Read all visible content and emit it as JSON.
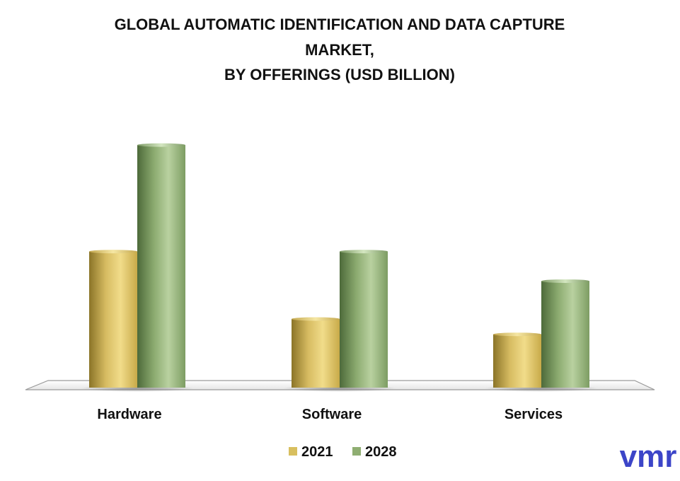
{
  "chart_data": {
    "type": "bar",
    "title_lines": [
      "GLOBAL AUTOMATIC IDENTIFICATION AND DATA CAPTURE",
      "MARKET,",
      "BY OFFERINGS (USD BILLION)"
    ],
    "categories": [
      "Hardware",
      "Software",
      "Services"
    ],
    "series": [
      {
        "name": "2021",
        "values": [
          11.5,
          5.8,
          4.5
        ],
        "color": "#d8bf5f"
      },
      {
        "name": "2028",
        "values": [
          20.5,
          11.5,
          9.0
        ],
        "color": "#8fae72"
      }
    ],
    "ylim": [
      0,
      22
    ],
    "grid": false,
    "legend_position": "bottom"
  },
  "brand": {
    "logo_text": "vmr",
    "color": "#3c45c8"
  }
}
